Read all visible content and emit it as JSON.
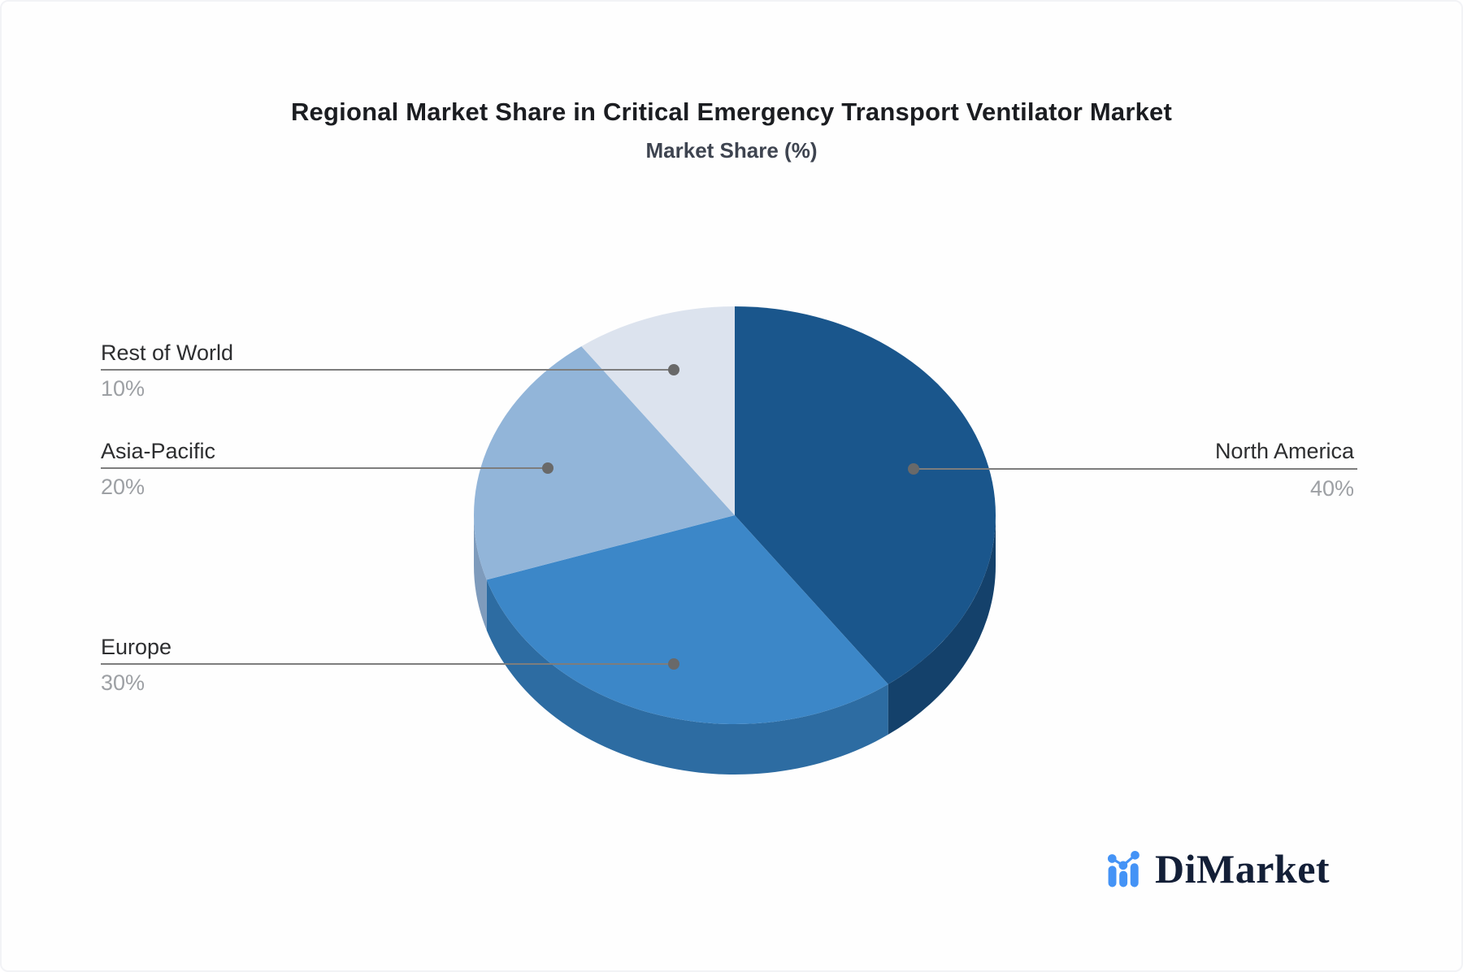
{
  "header": {
    "title": "Regional Market Share in Critical Emergency Transport Ventilator Market",
    "subtitle": "Market Share (%)"
  },
  "chart_data": {
    "type": "pie",
    "style": "3d",
    "title": "Regional Market Share in Critical Emergency Transport Ventilator Market",
    "subtitle": "Market Share (%)",
    "unit": "%",
    "start_angle_deg": 0,
    "direction": "clockwise",
    "legend_position": "callout-labels",
    "slices": [
      {
        "label": "North America",
        "value": 40,
        "display": "40%",
        "color": "#1a568c",
        "side_color": "#14416b"
      },
      {
        "label": "Europe",
        "value": 30,
        "display": "30%",
        "color": "#3c87c8",
        "side_color": "#2d6ca2"
      },
      {
        "label": "Asia-Pacific",
        "value": 20,
        "display": "20%",
        "color": "#92b5d9",
        "side_color": "#7e9bbc"
      },
      {
        "label": "Rest of World",
        "value": 10,
        "display": "10%",
        "color": "#dce3ee",
        "side_color": "#b9c3d4"
      }
    ],
    "callout_line_color": "#7d7d7d",
    "callout_dot_color": "#696969"
  },
  "branding": {
    "logo_text": "DiMarket",
    "logo_text_color": "#131f37",
    "icon_name": "bar-chart-trend-icon",
    "icon_color": "#4493f6"
  }
}
